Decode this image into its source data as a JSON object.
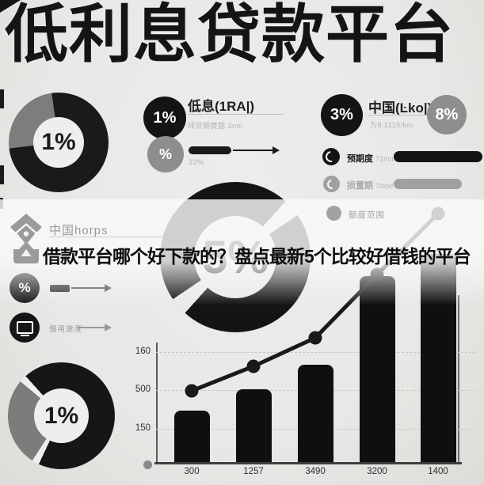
{
  "title": "低利息贷款平台",
  "banner_text": "借款平台哪个好下款的？盘点最新5个比较好借钱的平台",
  "brand": "中国horps",
  "top_left": {
    "donut_value": "1%",
    "badge_value": "1%",
    "heading": "低息(1RA|)",
    "subtext": "线贷期费豁 3nm",
    "percent_badge": "%",
    "rate_note": "33%"
  },
  "top_right": {
    "badge_black": "3%",
    "heading": "中国(Ŀko|)",
    "subtext": "为8.1115/km",
    "badge_gray": "8%",
    "rows": [
      {
        "label": "预期度",
        "sub": "71mm"
      },
      {
        "label": "损置期",
        "sub": "7diod"
      },
      {
        "label": "额度范围",
        "sub": ""
      }
    ]
  },
  "center_donut_value": "5%",
  "left_panel": {
    "percent_badge": "%",
    "speed_label": "借用速度"
  },
  "bottom_donut_value": "1%",
  "chart_data": {
    "type": "bar+line",
    "title": "",
    "categories": [
      "300",
      "1257",
      "3490",
      "3200",
      "1400"
    ],
    "series": [
      {
        "name": "bars",
        "type": "bar",
        "values": [
          65,
          92,
          123,
          235,
          263
        ]
      },
      {
        "name": "trend-line",
        "type": "line",
        "values": [
          90,
          121,
          157,
          237,
          314
        ]
      }
    ],
    "y_ticks": [
      "160",
      "500",
      "150"
    ],
    "unit": "px above baseline",
    "grid": "dashed horizontal",
    "colors": {
      "bar": "#0f0f0f",
      "line": "#191919",
      "accent_gray": "#8e8e8c"
    }
  }
}
